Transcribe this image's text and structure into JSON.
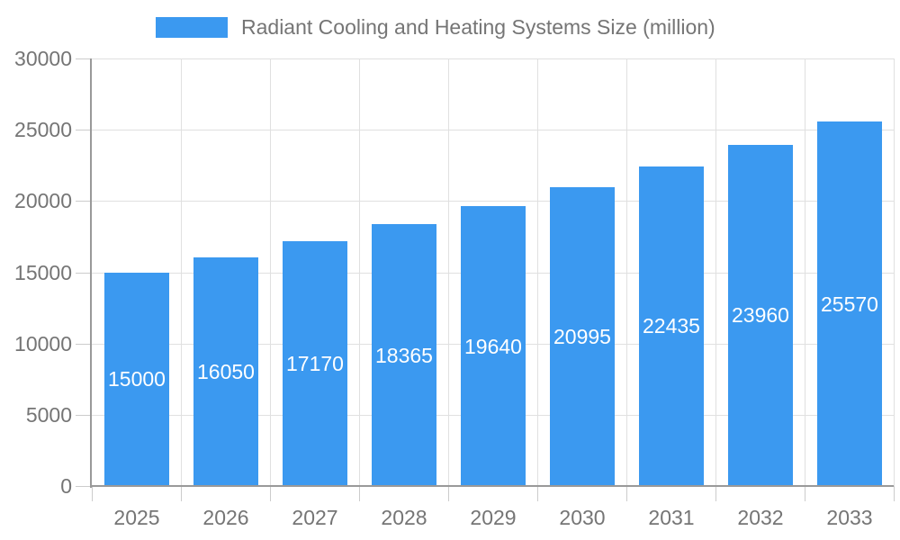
{
  "legend": {
    "label": "Radiant Cooling and Heating Systems Size (million)"
  },
  "colors": {
    "bar": "#3b99f0",
    "grid_line": "#e0e0e0",
    "tick_line": "#cccccc",
    "axis_line": "#999999",
    "tick_text": "#757575",
    "bar_label_text": "#ffffff",
    "background": "#ffffff"
  },
  "chart_data": {
    "type": "bar",
    "title": "",
    "legend_entries": [
      "Radiant Cooling and Heating Systems Size (million)"
    ],
    "legend_position": "top",
    "categories": [
      "2025",
      "2026",
      "2027",
      "2028",
      "2029",
      "2030",
      "2031",
      "2032",
      "2033"
    ],
    "values": [
      15000,
      16050,
      17170,
      18365,
      19640,
      20995,
      22435,
      23960,
      25570
    ],
    "bar_labels": [
      "15000",
      "16050",
      "17170",
      "18365",
      "19640",
      "20995",
      "22435",
      "23960",
      "25570"
    ],
    "xlabel": "",
    "ylabel": "",
    "ylim": [
      0,
      30000
    ],
    "ytick_step": 5000,
    "yticks": [
      0,
      5000,
      10000,
      15000,
      20000,
      25000,
      30000
    ],
    "grid": true
  }
}
